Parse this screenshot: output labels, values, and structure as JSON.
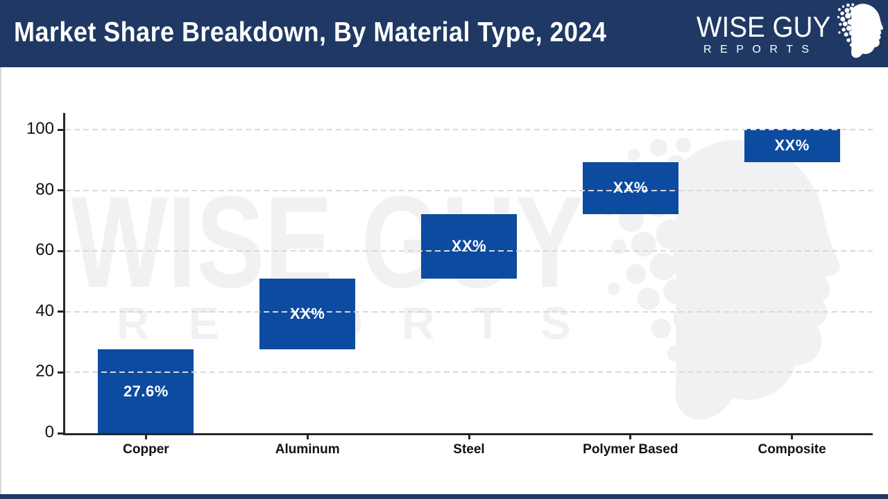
{
  "header": {
    "title": "Market Share Breakdown, By Material Type, 2024",
    "logo": {
      "line1": "WISE GUY",
      "line2": "REPORTS"
    }
  },
  "watermark": {
    "line1": "WISE GUY",
    "line2": "REPORTS"
  },
  "colors": {
    "header_bg": "#1f3864",
    "bar": "#0c4ba0",
    "grid": "#d9d9d9",
    "axis": "#262626",
    "bar_label": "#ffffff",
    "watermark": "#f1f1f4"
  },
  "chart_data": {
    "type": "bar",
    "variant": "floating-waterfall",
    "title": "Market Share Breakdown, By Material Type, 2024",
    "categories": [
      "Copper",
      "Aluminum",
      "Steel",
      "Polymer Based",
      "Composite"
    ],
    "segments": [
      {
        "category": "Copper",
        "from": 0,
        "to": 27.6,
        "label": "27.6%"
      },
      {
        "category": "Aluminum",
        "from": 27.6,
        "to": 51.0,
        "label": "XX%"
      },
      {
        "category": "Steel",
        "from": 51.0,
        "to": 72.2,
        "label": "XX%"
      },
      {
        "category": "Polymer Based",
        "from": 72.2,
        "to": 89.4,
        "label": "XX%"
      },
      {
        "category": "Composite",
        "from": 89.4,
        "to": 100.2,
        "label": "XX%"
      }
    ],
    "xlabel": "",
    "ylabel": "",
    "yticks": [
      0,
      20,
      40,
      60,
      80,
      100
    ],
    "ylim": [
      0,
      105.5
    ],
    "grid": "dashed-horizontal",
    "legend": "none"
  }
}
